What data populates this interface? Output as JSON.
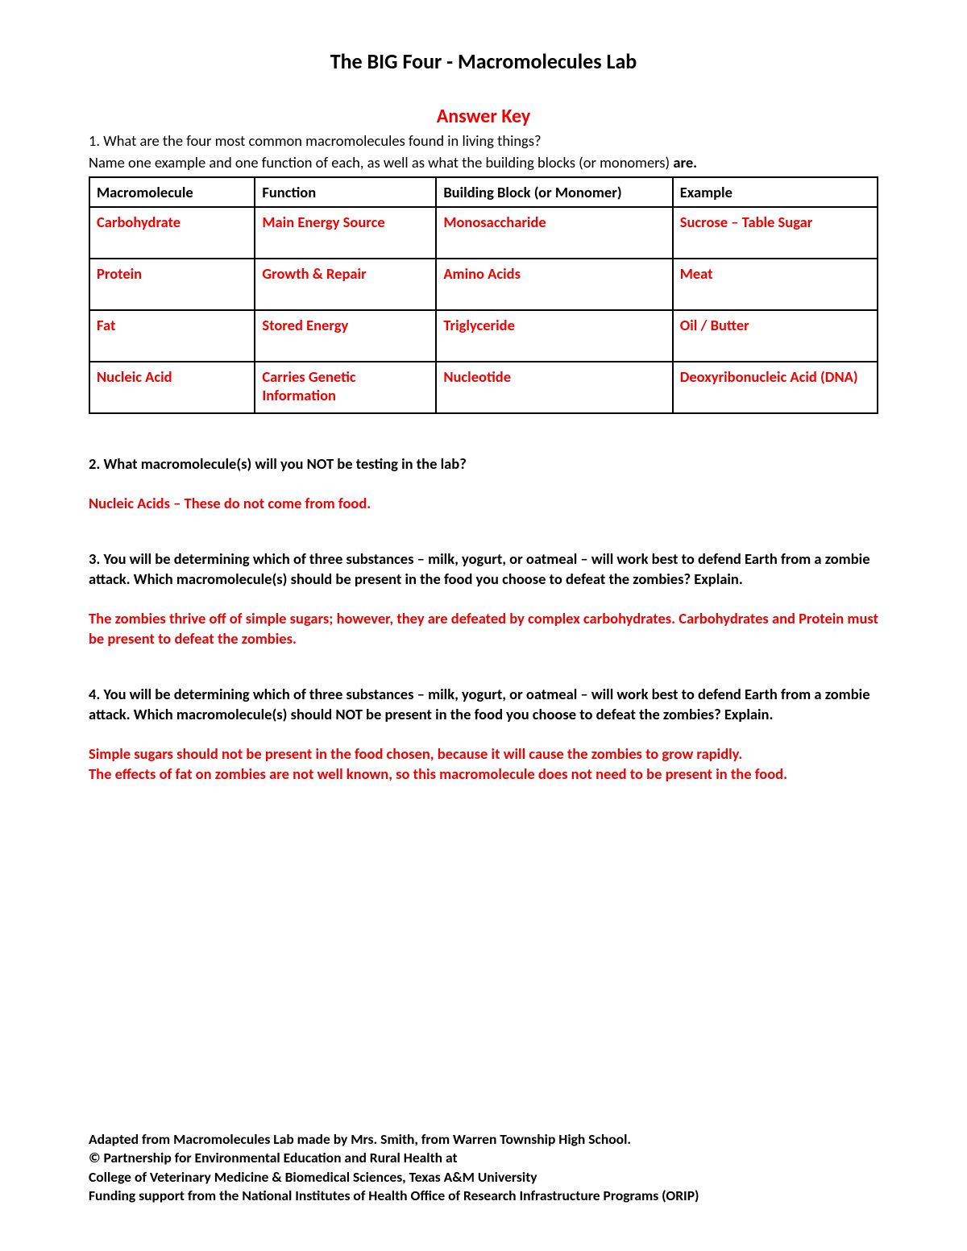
{
  "title": "The BIG Four - Macromolecules Lab",
  "subtitle": "Answer Key",
  "q1": {
    "line1": "1. What are the four most common macromolecules found in living things?",
    "line2_a": "Name one example and one function of each, as well as what the building blocks (or monomers)",
    "line2_b": " are.",
    "columns": [
      "Macromolecule",
      "Function",
      "Building Block (or Monomer)",
      "Example"
    ],
    "rows": [
      [
        "Carbohydrate",
        "Main Energy Source",
        "Monosaccharide",
        "Sucrose – Table Sugar"
      ],
      [
        "Protein",
        "Growth & Repair",
        "Amino Acids",
        "Meat"
      ],
      [
        "Fat",
        "Stored Energy",
        "Triglyceride",
        "Oil / Butter"
      ],
      [
        "Nucleic Acid",
        "Carries Genetic Information",
        "Nucleotide",
        "Deoxyribonucleic Acid (DNA)"
      ]
    ]
  },
  "q2": {
    "text": "2. What macromolecule(s) will you NOT be testing in the lab?",
    "answer": "Nucleic Acids – These do not come from food."
  },
  "q3": {
    "text": "3. You will be determining which of three substances – milk, yogurt, or oatmeal – will work best to defend Earth from a zombie attack. Which macromolecule(s) should be present in the food you choose to defeat the zombies? Explain.",
    "answer": "The zombies thrive off of simple sugars; however, they are defeated by complex carbohydrates. Carbohydrates and Protein must be present to defeat the zombies."
  },
  "q4": {
    "text": "4. You will be determining which of three substances – milk, yogurt, or oatmeal – will work best to defend Earth from a zombie attack. Which macromolecule(s) should NOT be present in the food you choose to defeat the zombies? Explain.",
    "answer_a": "Simple sugars should not be present in the food chosen, because it will cause the zombies to grow rapidly.",
    "answer_b": "The effects of fat on zombies are not well known, so this macromolecule does not need to be present in the food."
  },
  "footer": {
    "l1": "Adapted from Macromolecules Lab made by Mrs. Smith, from Warren Township High School.",
    "l2": "© Partnership for Environmental Education and Rural Health at",
    "l3": "College of Veterinary Medicine & Biomedical Sciences, Texas A&M University",
    "l4": "Funding support from the National Institutes of Health Office of Research Infrastructure Programs  (ORIP)"
  },
  "colors": {
    "answer_red": "#ed0202",
    "text_black": "#000000",
    "bg": "#ffffff"
  }
}
